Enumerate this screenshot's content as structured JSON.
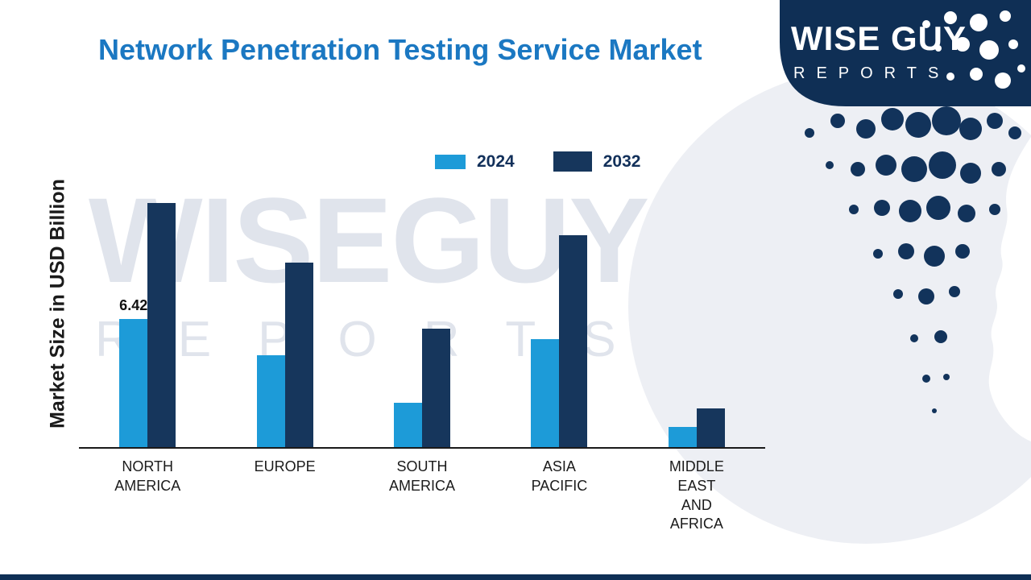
{
  "header": {
    "title": "Network Penetration Testing Service Market"
  },
  "logo": {
    "line1": "WISE GUY",
    "line2": "REPORTS",
    "bg_color": "#0f2f55"
  },
  "watermark": {
    "line1": "WISEGUY",
    "line2": "REPORTS"
  },
  "chart_data": {
    "type": "bar",
    "title": "Network Penetration Testing Service Market",
    "xlabel": "",
    "ylabel": "Market Size in USD Billion",
    "categories": [
      "NORTH AMERICA",
      "EUROPE",
      "SOUTH AMERICA",
      "ASIA PACIFIC",
      "MIDDLE EAST AND AFRICA"
    ],
    "category_display": [
      "NORTH\nAMERICA",
      "EUROPE",
      "SOUTH\nAMERICA",
      "ASIA\nPACIFIC",
      "MIDDLE\nEAST\nAND\nAFRICA"
    ],
    "series": [
      {
        "name": "2024",
        "color": "#1d9bd8",
        "values": [
          6.42,
          4.6,
          2.2,
          5.4,
          1.0
        ]
      },
      {
        "name": "2032",
        "color": "#16365c",
        "values": [
          12.2,
          9.2,
          5.9,
          10.6,
          1.95
        ]
      }
    ],
    "ylim": [
      0,
      12.6
    ],
    "grid": false,
    "legend_position": "top",
    "bar_label": {
      "series": "2024",
      "category": "NORTH AMERICA",
      "category_index": 0,
      "text": "6.42"
    }
  },
  "colors": {
    "title": "#1b78c2",
    "axis": "#1a1a1a",
    "footer": "#0f2f55",
    "watermark": "#e0e4ec",
    "head_circle": "#edeff4"
  }
}
